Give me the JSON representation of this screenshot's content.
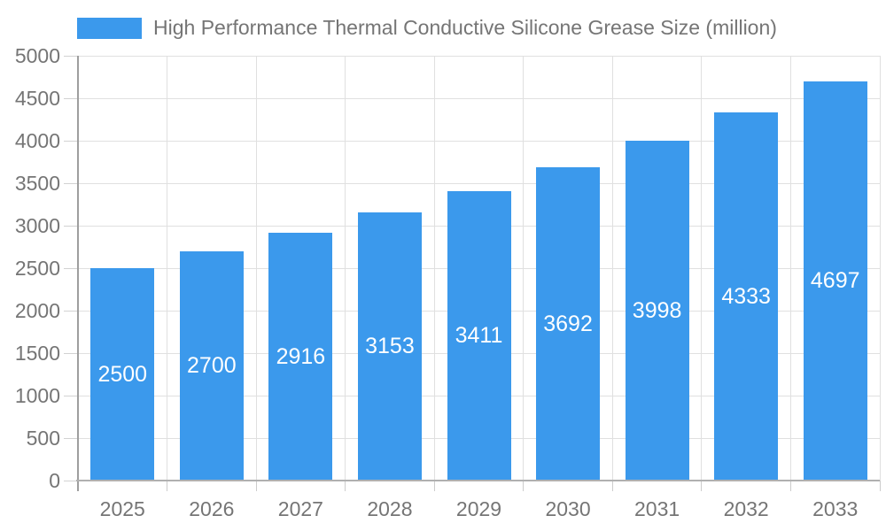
{
  "legend": {
    "label": "High Performance Thermal Conductive Silicone Grease Size (million)"
  },
  "chart_data": {
    "type": "bar",
    "title": "",
    "categories": [
      "2025",
      "2026",
      "2027",
      "2028",
      "2029",
      "2030",
      "2031",
      "2032",
      "2033"
    ],
    "series": [
      {
        "name": "High Performance Thermal Conductive Silicone Grease Size (million)",
        "values": [
          2500,
          2700,
          2916,
          3153,
          3411,
          3692,
          3998,
          4333,
          4697
        ]
      }
    ],
    "value_labels": [
      "2500",
      "2700",
      "2916",
      "3153",
      "3411",
      "3692",
      "3998",
      "4333",
      "4697"
    ],
    "xlabel": "",
    "ylabel": "",
    "ylim": [
      0,
      5000
    ],
    "ytick_step": 500,
    "yticks": [
      0,
      500,
      1000,
      1500,
      2000,
      2500,
      3000,
      3500,
      4000,
      4500,
      5000
    ],
    "grid": true,
    "legend_position": "top-left",
    "colors": {
      "bar": "#3B99EC",
      "value_label": "#ffffff",
      "axis_text": "#757575",
      "gridline": "#e0e0e0",
      "y_axis_line": "#9e9e9e",
      "x_axis_line": "#b0b0b0",
      "background": "#ffffff"
    }
  }
}
